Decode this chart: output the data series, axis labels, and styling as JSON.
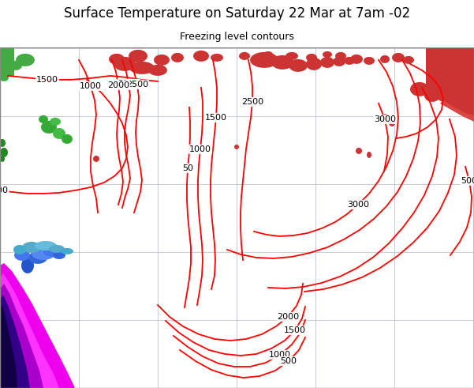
{
  "title": "Surface Temperature on Saturday 22 Mar at 7am -02",
  "subtitle": "Freezing level contours",
  "map_bg": "#dce0f0",
  "title_fontsize": 12,
  "subtitle_fontsize": 9,
  "contour_color": "#ff0000",
  "contour_linewidth": 1.3,
  "grid_color": "#c0c4d8",
  "figsize": [
    6.01,
    4.91
  ],
  "dpi": 100,
  "label_fontsize": 8
}
